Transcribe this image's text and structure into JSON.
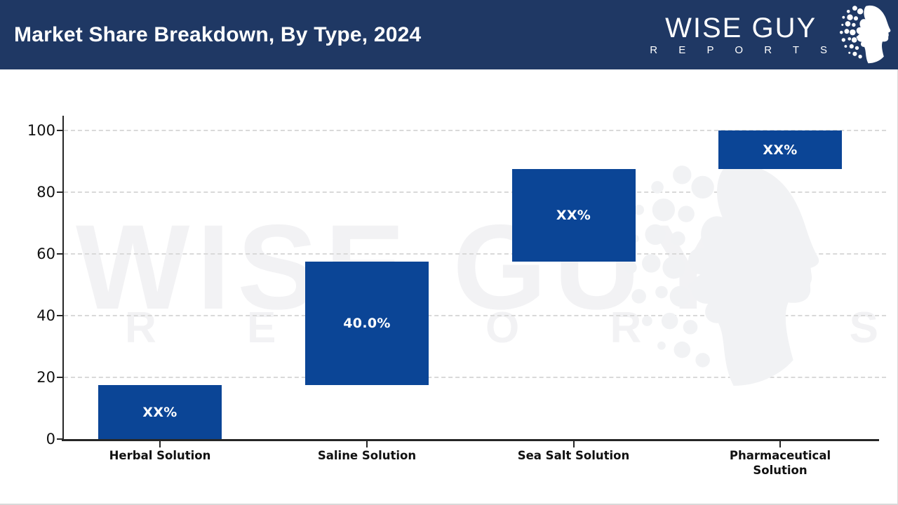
{
  "header": {
    "title": "Market Share Breakdown, By Type, 2024",
    "bg_color": "#1f3864",
    "logo": {
      "line1": "WISE GUY",
      "line2": "R E P O R T S"
    }
  },
  "watermark": {
    "line1": "WISE GUY",
    "line2": "R E P O R T S"
  },
  "chart_data": {
    "type": "bar",
    "subtype": "waterfall",
    "title": "Market Share Breakdown, By Type, 2024",
    "categories": [
      "Herbal Solution",
      "Saline Solution",
      "Sea Salt Solution",
      "Pharmaceutical Solution"
    ],
    "segments": [
      {
        "category": "Herbal Solution",
        "start": 0,
        "end": 17.5,
        "label": "XX%"
      },
      {
        "category": "Saline Solution",
        "start": 17.5,
        "end": 57.5,
        "label": "40.0%"
      },
      {
        "category": "Sea Salt Solution",
        "start": 57.5,
        "end": 87.5,
        "label": "XX%"
      },
      {
        "category": "Pharmaceutical Solution",
        "start": 87.5,
        "end": 100,
        "label": "XX%"
      }
    ],
    "xlabel": "",
    "ylabel": "",
    "y_ticks": [
      0,
      20,
      40,
      60,
      80,
      100
    ],
    "ylim": [
      0,
      105
    ],
    "grid": "horizontal-dashed",
    "legend": "none",
    "bar_color": "#0b4596",
    "bar_label_color": "#ffffff",
    "axis_color": "#262626",
    "grid_color": "#d9d9d9"
  }
}
